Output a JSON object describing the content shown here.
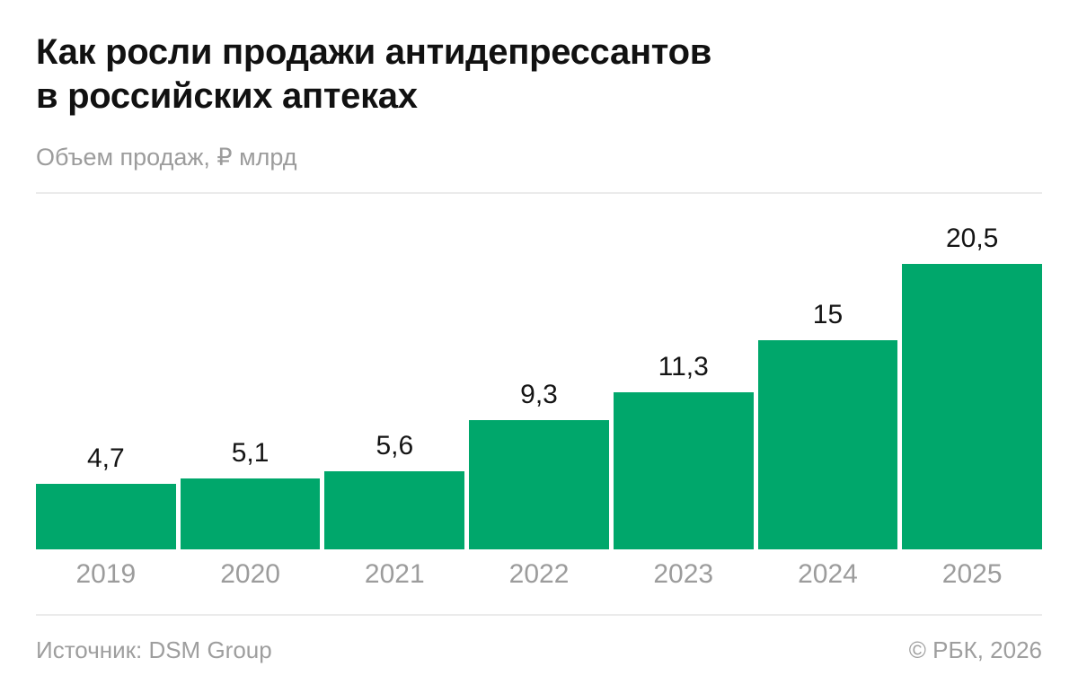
{
  "header": {
    "title_lines": [
      "Как росли продажи антидепрессантов",
      "в российских аптеках"
    ],
    "subtitle": "Объем продаж, ₽ млрд"
  },
  "chart_data": {
    "type": "bar",
    "title": "Как росли продажи антидепрессантов в российских аптеках",
    "subtitle": "Объем продаж, ₽ млрд",
    "categories": [
      "2019",
      "2020",
      "2021",
      "2022",
      "2023",
      "2024",
      "2025"
    ],
    "values": [
      4.7,
      5.1,
      5.6,
      9.3,
      11.3,
      15,
      20.5
    ],
    "value_labels": [
      "4,7",
      "5,1",
      "5,6",
      "9,3",
      "11,3",
      "15",
      "20,5"
    ],
    "xlabel": "",
    "ylabel": "Объем продаж, ₽ млрд",
    "ylim": [
      0,
      22
    ],
    "grid": false,
    "legend": false,
    "bar_color": "#00A76B"
  },
  "footer": {
    "source": "Источник: DSM Group",
    "copyright": "© РБК, 2026"
  },
  "colors": {
    "accent_green": "#00A76B",
    "text_primary": "#111111",
    "text_secondary": "#9C9C9C",
    "divider": "#EBEBEB",
    "background": "#FFFFFF"
  }
}
